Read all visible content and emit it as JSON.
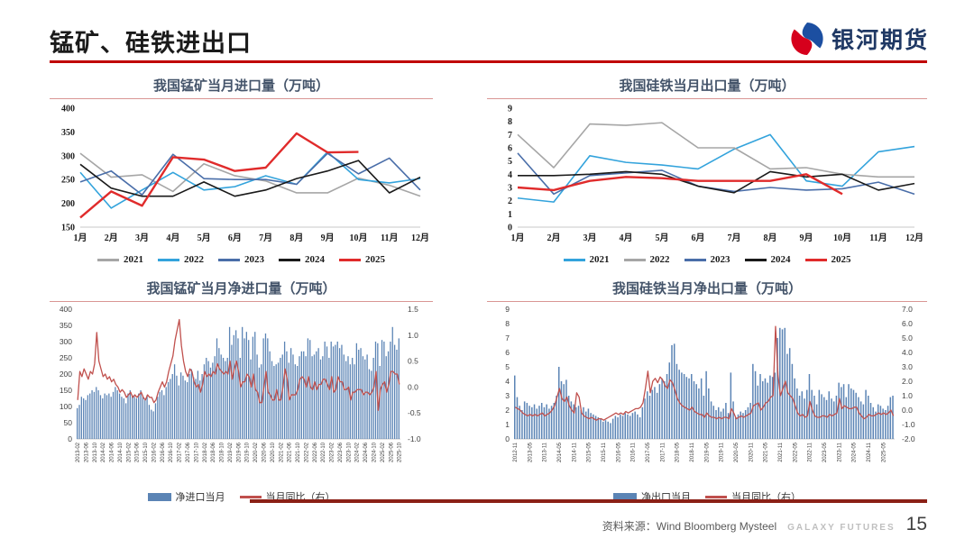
{
  "page": {
    "title": "锰矿、硅铁进出口",
    "logo_text": "银河期货",
    "footer": {
      "source_label": "资料来源：Wind Bloomberg Mysteel",
      "brand": "GALAXY FUTURES",
      "page_number": "15"
    },
    "accent_colors": {
      "header_rule": "#C00000",
      "footer_rule": "#8B2016",
      "chart_title_text": "#44546A",
      "chart_title_rule": "#D99694"
    }
  },
  "chart_data": [
    {
      "type": "line",
      "title": "我国锰矿当月进口量（万吨）",
      "categories": [
        "1月",
        "2月",
        "3月",
        "4月",
        "5月",
        "6月",
        "7月",
        "8月",
        "9月",
        "10月",
        "11月",
        "12月"
      ],
      "ylim": [
        150,
        400
      ],
      "yticks": [
        400,
        350,
        300,
        250,
        200,
        150
      ],
      "legend_position": "bottom",
      "grid": false,
      "series": [
        {
          "name": "2021",
          "color": "#A6A6A6",
          "values": [
            305,
            255,
            260,
            225,
            283,
            258,
            247,
            222,
            222,
            253,
            238,
            215
          ]
        },
        {
          "name": "2022",
          "color": "#33A3DC",
          "values": [
            265,
            190,
            228,
            265,
            228,
            235,
            258,
            240,
            308,
            250,
            243,
            252
          ]
        },
        {
          "name": "2023",
          "color": "#4A6EA9",
          "values": [
            245,
            268,
            218,
            303,
            252,
            250,
            250,
            240,
            305,
            262,
            295,
            228
          ]
        },
        {
          "name": "2024",
          "color": "#1A1A1A",
          "values": [
            282,
            232,
            215,
            215,
            245,
            215,
            228,
            252,
            268,
            290,
            222,
            255
          ]
        },
        {
          "name": "2025",
          "color": "#E02B2B",
          "width": 2.4,
          "values": [
            170,
            225,
            195,
            297,
            292,
            268,
            275,
            347,
            307,
            308
          ]
        }
      ]
    },
    {
      "type": "line",
      "title": "我国硅铁当月出口量（万吨）",
      "categories": [
        "1月",
        "2月",
        "3月",
        "4月",
        "5月",
        "6月",
        "7月",
        "8月",
        "9月",
        "10月",
        "11月",
        "12月"
      ],
      "ylim": [
        0,
        9
      ],
      "yticks": [
        9,
        8,
        7,
        6,
        5,
        4,
        3,
        2,
        1,
        0
      ],
      "legend_position": "bottom",
      "grid": false,
      "series": [
        {
          "name": "2021",
          "color": "#33A3DC",
          "values": [
            2.2,
            1.9,
            5.4,
            4.9,
            4.7,
            4.4,
            5.9,
            7.0,
            3.5,
            3.1,
            5.7,
            6.1
          ]
        },
        {
          "name": "2022",
          "color": "#A6A6A6",
          "values": [
            7.0,
            4.5,
            7.8,
            7.7,
            7.9,
            6.0,
            6.0,
            4.4,
            4.5,
            4.0,
            3.8,
            3.8
          ]
        },
        {
          "name": "2023",
          "color": "#4A6EA9",
          "values": [
            5.6,
            2.5,
            3.9,
            4.1,
            4.3,
            3.1,
            2.7,
            3.0,
            2.8,
            2.9,
            3.4,
            2.5
          ]
        },
        {
          "name": "2024",
          "color": "#1A1A1A",
          "values": [
            3.9,
            3.9,
            4.0,
            4.2,
            4.0,
            3.1,
            2.6,
            4.2,
            3.8,
            4.0,
            2.8,
            3.3
          ]
        },
        {
          "name": "2025",
          "color": "#E02B2B",
          "width": 2.4,
          "values": [
            3.0,
            2.8,
            3.5,
            3.8,
            3.7,
            3.5,
            3.5,
            3.5,
            4.0,
            2.5
          ]
        }
      ]
    },
    {
      "type": "bar-line",
      "title": "我国锰矿当月净进口量（万吨）",
      "left_ylim": [
        0,
        400
      ],
      "left_yticks": [
        400,
        350,
        300,
        250,
        200,
        150,
        100,
        50,
        0
      ],
      "right_ylim": [
        -1.0,
        1.5
      ],
      "right_yticks": [
        "1.5",
        "1.0",
        "0.5",
        "0.0",
        "-0.5",
        "-1.0"
      ],
      "label_every": 4,
      "x_labels": [
        "2013-02",
        "2013-06",
        "2013-10",
        "2014-02",
        "2014-06",
        "2014-10",
        "2015-02",
        "2015-06",
        "2015-10",
        "2016-02",
        "2016-06",
        "2016-10",
        "2017-02",
        "2017-06",
        "2017-10",
        "2018-02",
        "2018-06",
        "2018-10",
        "2019-02",
        "2019-06",
        "2019-10",
        "2020-02",
        "2020-06",
        "2020-10",
        "2021-02",
        "2021-06",
        "2021-10",
        "2022-02",
        "2022-06",
        "2022-10",
        "2023-02",
        "2023-06",
        "2023-10",
        "2024-02",
        "2024-06",
        "2024-10",
        "2025-02",
        "2025-06",
        "2025-10"
      ],
      "bars": {
        "name": "净进口当月",
        "color": "#5B84B5",
        "values": [
          95,
          105,
          130,
          125,
          120,
          135,
          140,
          150,
          145,
          160,
          150,
          135,
          125,
          140,
          135,
          140,
          130,
          145,
          160,
          150,
          140,
          130,
          125,
          110,
          140,
          150,
          135,
          130,
          125,
          140,
          150,
          130,
          120,
          135,
          105,
          90,
          85,
          110,
          130,
          145,
          150,
          135,
          160,
          175,
          185,
          200,
          230,
          195,
          165,
          205,
          195,
          180,
          175,
          200,
          215,
          190,
          185,
          210,
          180,
          200,
          230,
          250,
          240,
          220,
          235,
          255,
          310,
          280,
          260,
          250,
          240,
          250,
          345,
          290,
          320,
          335,
          310,
          250,
          345,
          310,
          330,
          305,
          245,
          315,
          330,
          260,
          220,
          230,
          310,
          325,
          310,
          270,
          240,
          225,
          230,
          235,
          250,
          260,
          300,
          270,
          235,
          280,
          260,
          230,
          225,
          255,
          270,
          270,
          255,
          310,
          305,
          255,
          260,
          270,
          280,
          245,
          255,
          300,
          285,
          250,
          300,
          285,
          290,
          300,
          280,
          290,
          260,
          240,
          255,
          230,
          250,
          230,
          295,
          275,
          280,
          255,
          245,
          260,
          215,
          210,
          250,
          300,
          295,
          225,
          305,
          300,
          255,
          270,
          300,
          345,
          290,
          275,
          310
        ]
      },
      "line": {
        "name": "当月同比（右）",
        "color": "#C0504D",
        "values": [
          -0.25,
          0.3,
          0.2,
          0.35,
          0.25,
          0.15,
          0.3,
          0.25,
          0.45,
          1.05,
          0.5,
          0.35,
          0.2,
          0.25,
          0.15,
          0.2,
          0.1,
          0.15,
          0.05,
          0,
          -0.1,
          -0.05,
          -0.1,
          -0.2,
          -0.15,
          -0.1,
          -0.2,
          -0.15,
          -0.2,
          -0.15,
          -0.1,
          -0.2,
          -0.25,
          -0.15,
          -0.2,
          -0.2,
          -0.3,
          -0.25,
          -0.1,
          0,
          0.1,
          0,
          0.1,
          0.3,
          0.45,
          0.6,
          0.9,
          1.1,
          1.3,
          0.8,
          0.5,
          0.3,
          0.2,
          0.35,
          0.3,
          0.1,
          0,
          0.05,
          -0.1,
          0.05,
          0.3,
          0.2,
          0.25,
          0.2,
          0.3,
          0.25,
          0.45,
          0.35,
          0.3,
          0.25,
          0.3,
          0.25,
          0.5,
          0.15,
          0.35,
          0.5,
          0.3,
          0,
          0.1,
          0.1,
          0.25,
          0.2,
          0,
          0.25,
          -0.05,
          -0.1,
          -0.3,
          -0.3,
          0,
          0.3,
          -0.1,
          -0.15,
          -0.25,
          -0.25,
          -0.05,
          -0.25,
          -0.25,
          0,
          0.35,
          0.15,
          -0.25,
          -0.15,
          -0.15,
          -0.15,
          -0.05,
          0.15,
          0.2,
          0.15,
          0,
          0.2,
          0,
          -0.05,
          0.1,
          -0.05,
          0.05,
          0.05,
          0.15,
          0.15,
          0.05,
          -0.05,
          0.2,
          -0.1,
          -0.05,
          0.2,
          0.1,
          0.1,
          -0.05,
          -0.05,
          0,
          -0.25,
          -0.1,
          -0.1,
          -0.05,
          -0.05,
          -0.05,
          -0.15,
          -0.1,
          -0.1,
          -0.15,
          -0.1,
          0,
          0.3,
          -0.45,
          -0.05,
          0.05,
          0.1,
          -0.1,
          0.05,
          0.3,
          0.3,
          0.25,
          0.25,
          0.05
        ]
      }
    },
    {
      "type": "bar-line",
      "title": "我国硅铁当月净出口量（万吨）",
      "left_ylim": [
        0,
        9
      ],
      "left_yticks": [
        9,
        8,
        7,
        6,
        5,
        4,
        3,
        2,
        1,
        0
      ],
      "right_ylim": [
        -2.0,
        7.0
      ],
      "right_yticks": [
        "7.0",
        "6.0",
        "5.0",
        "4.0",
        "3.0",
        "2.0",
        "1.0",
        "0.0",
        "-1.0",
        "-2.0"
      ],
      "label_every": 6,
      "x_labels": [
        "2012-11",
        "2013-05",
        "2013-11",
        "2014-05",
        "2014-11",
        "2015-05",
        "2015-11",
        "2016-05",
        "2016-11",
        "2017-05",
        "2017-11",
        "2018-05",
        "2018-11",
        "2019-05",
        "2019-11",
        "2020-05",
        "2020-11",
        "2021-05",
        "2021-11",
        "2022-05",
        "2022-11",
        "2023-05",
        "2023-11",
        "2024-05",
        "2024-11",
        "2025-05"
      ],
      "bars": {
        "name": "净出口当月",
        "color": "#5B84B5",
        "values": [
          4.4,
          2.9,
          2.3,
          2.0,
          2.6,
          2.5,
          2.3,
          2.2,
          2.4,
          2.1,
          2.3,
          2.5,
          2.2,
          2.4,
          2.1,
          2.3,
          2.5,
          3.0,
          5.0,
          4.0,
          3.8,
          4.1,
          3.0,
          2.6,
          2.4,
          2.2,
          2.3,
          2.0,
          2.2,
          1.9,
          2.1,
          1.8,
          1.7,
          1.6,
          1.5,
          1.4,
          1.2,
          1.3,
          1.2,
          1.1,
          1.4,
          1.6,
          1.5,
          1.7,
          1.6,
          1.8,
          1.7,
          1.6,
          1.8,
          1.9,
          1.7,
          1.5,
          2.2,
          2.8,
          3.3,
          3.0,
          3.4,
          3.6,
          3.2,
          3.8,
          4.2,
          4.0,
          4.5,
          5.3,
          6.5,
          6.6,
          5.2,
          4.8,
          4.6,
          4.5,
          4.3,
          4.2,
          4.5,
          4.0,
          3.8,
          3.5,
          4.2,
          3.0,
          4.7,
          3.5,
          2.6,
          2.3,
          2.0,
          2.2,
          1.9,
          2.1,
          2.5,
          1.8,
          4.6,
          2.6,
          1.5,
          1.7,
          1.9,
          1.8,
          2.0,
          2.2,
          2.5,
          5.2,
          4.7,
          3.7,
          4.5,
          4.0,
          4.2,
          3.9,
          4.4,
          4.3,
          4.6,
          7.0,
          7.7,
          7.6,
          7.7,
          5.9,
          6.3,
          5.2,
          4.2,
          3.5,
          3.0,
          3.3,
          2.8,
          3.4,
          4.5,
          3.4,
          3.0,
          2.4,
          3.4,
          3.1,
          2.9,
          2.7,
          3.3,
          2.8,
          2.6,
          3.0,
          3.9,
          3.6,
          3.8,
          2.9,
          3.8,
          3.5,
          3.4,
          3.2,
          2.9,
          2.6,
          2.4,
          3.4,
          3.0,
          2.5,
          2.2,
          1.9,
          2.4,
          2.3,
          2.1,
          2.0,
          2.3,
          2.9,
          3.0
        ]
      },
      "line": {
        "name": "当月同比（右）",
        "color": "#C0504D",
        "values": [
          0.2,
          0.1,
          0,
          -0.2,
          -0.3,
          -0.4,
          -0.3,
          -0.4,
          -0.3,
          -0.4,
          -0.3,
          -0.2,
          -0.4,
          -0.3,
          -0.2,
          0,
          0.3,
          0.9,
          1.5,
          0.8,
          0.6,
          0.9,
          0.3,
          0,
          -0.2,
          1.2,
          0.9,
          -0.2,
          -0.4,
          -0.5,
          -0.6,
          -0.5,
          -0.6,
          -0.7,
          -0.6,
          -0.6,
          -0.7,
          -0.6,
          -0.5,
          -0.4,
          -0.3,
          -0.2,
          -0.3,
          -0.2,
          -0.3,
          -0.1,
          -0.2,
          -0.1,
          0,
          0.1,
          0.1,
          0.2,
          0.5,
          1.5,
          2.7,
          1.2,
          2.0,
          2.2,
          1.9,
          2.3,
          2.1,
          1.7,
          1.5,
          2.1,
          1.9,
          1.4,
          0.8,
          0.5,
          0.3,
          0.2,
          0.1,
          0,
          0.2,
          -0.1,
          -0.2,
          -0.3,
          -0.3,
          -0.5,
          -0.2,
          -0.4,
          -0.5,
          -0.5,
          -0.6,
          -0.5,
          -0.6,
          -0.5,
          -0.5,
          -0.6,
          0.1,
          -0.2,
          -0.6,
          -0.5,
          -0.4,
          -0.5,
          -0.4,
          -0.3,
          -0.2,
          0.3,
          0.4,
          0.5,
          0,
          0.2,
          0.5,
          0.6,
          0.9,
          1.0,
          5.8,
          2.4,
          1.0,
          1.5,
          2.0,
          1.2,
          1.0,
          0.8,
          0.3,
          -0.2,
          -0.4,
          -0.3,
          -0.5,
          -0.4,
          0.6,
          0,
          -0.4,
          -0.5,
          -0.5,
          -0.4,
          -0.4,
          -0.5,
          -0.3,
          -0.4,
          -0.3,
          -0.2,
          0.8,
          0.1,
          0.3,
          0.2,
          0.1,
          0.1,
          0.2,
          0.2,
          -0.2,
          -0.4,
          -0.6,
          -0.5,
          -0.3,
          -0.4,
          -0.4,
          -0.3,
          -0.2,
          -0.3,
          -0.2,
          -0.3,
          -0.2,
          0,
          -0.4
        ]
      }
    }
  ]
}
